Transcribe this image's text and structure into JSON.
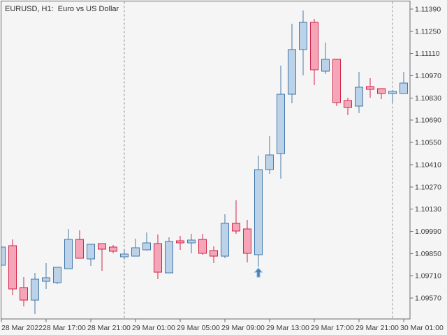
{
  "window": {
    "title": "EURUSD, H1:  Euro vs US Dollar"
  },
  "colors": {
    "background": "#f5f5f5",
    "frame": "#6b6b6b",
    "axis_text": "#3b3b3b",
    "separator": "#8f8f8f",
    "bull_fill": "#bcd2e8",
    "bull_border": "#4379a8",
    "bear_fill": "#f4a6b8",
    "bear_border": "#d42349",
    "marker_fill": "#4b80b4",
    "marker_outline": "#a9c9e6"
  },
  "chart_data": {
    "type": "candlestick",
    "symbol": "EURUSD",
    "timeframe": "H1",
    "description": "Euro vs US Dollar",
    "title": "EURUSD, H1:  Euro vs US Dollar",
    "grid": false,
    "y_axis": {
      "side": "right",
      "price_max": 1.1139,
      "price_min": 1.0957,
      "tick_step": 0.0014,
      "labels": [
        "1.11390",
        "1.11250",
        "1.11110",
        "1.10970",
        "1.10830",
        "1.10690",
        "1.10550",
        "1.10410",
        "1.10270",
        "1.10130",
        "1.09990",
        "1.09850",
        "1.09710",
        "1.09570"
      ]
    },
    "x_axis": {
      "side": "bottom",
      "tick_every_n_candles": 4,
      "labels": [
        "28 Mar 2022",
        "28 Mar 17:00",
        "28 Mar 21:00",
        "29 Mar 01:00",
        "29 Mar 05:00",
        "29 Mar 09:00",
        "29 Mar 13:00",
        "29 Mar 17:00",
        "29 Mar 21:00",
        "30 Mar 01:00"
      ]
    },
    "day_separators": [
      {
        "candle_index": 11,
        "time": "29 Mar 00:00"
      },
      {
        "candle_index": 35,
        "time": "30 Mar 00:00"
      }
    ],
    "marker": {
      "type": "arrow-up",
      "candle_index": 23,
      "time": "29 Mar 12:00",
      "price": 1.0976
    },
    "candles": [
      {
        "t": "28 Mar 13:00",
        "o": 1.09777,
        "h": 1.09891,
        "l": 1.09777,
        "c": 1.09891,
        "d": "up"
      },
      {
        "t": "28 Mar 14:00",
        "o": 1.099,
        "h": 1.09939,
        "l": 1.09588,
        "c": 1.09627,
        "d": "down"
      },
      {
        "t": "28 Mar 15:00",
        "o": 1.09636,
        "h": 1.09702,
        "l": 1.09517,
        "c": 1.09557,
        "d": "down"
      },
      {
        "t": "28 Mar 16:00",
        "o": 1.09557,
        "h": 1.09728,
        "l": 1.09469,
        "c": 1.09689,
        "d": "up"
      },
      {
        "t": "28 Mar 17:00",
        "o": 1.09675,
        "h": 1.0979,
        "l": 1.09627,
        "c": 1.09697,
        "d": "up"
      },
      {
        "t": "28 Mar 18:00",
        "o": 1.09667,
        "h": 1.09763,
        "l": 1.09658,
        "c": 1.09763,
        "d": "up"
      },
      {
        "t": "28 Mar 19:00",
        "o": 1.09755,
        "h": 1.10005,
        "l": 1.09755,
        "c": 1.09939,
        "d": "up"
      },
      {
        "t": "28 Mar 20:00",
        "o": 1.09939,
        "h": 1.09996,
        "l": 1.09821,
        "c": 1.09821,
        "d": "down"
      },
      {
        "t": "28 Mar 21:00",
        "o": 1.09816,
        "h": 1.09909,
        "l": 1.09772,
        "c": 1.09909,
        "d": "up"
      },
      {
        "t": "28 Mar 22:00",
        "o": 1.09913,
        "h": 1.09913,
        "l": 1.09742,
        "c": 1.09878,
        "d": "down"
      },
      {
        "t": "28 Mar 23:00",
        "o": 1.09891,
        "h": 1.09904,
        "l": 1.09851,
        "c": 1.09865,
        "d": "down"
      },
      {
        "t": "29 Mar 00:00",
        "o": 1.09829,
        "h": 1.09878,
        "l": 1.09812,
        "c": 1.09847,
        "d": "up"
      },
      {
        "t": "29 Mar 01:00",
        "o": 1.09834,
        "h": 1.09944,
        "l": 1.09834,
        "c": 1.09887,
        "d": "up"
      },
      {
        "t": "29 Mar 02:00",
        "o": 1.09873,
        "h": 1.09983,
        "l": 1.09869,
        "c": 1.09917,
        "d": "up"
      },
      {
        "t": "29 Mar 03:00",
        "o": 1.09913,
        "h": 1.0997,
        "l": 1.09689,
        "c": 1.09733,
        "d": "down"
      },
      {
        "t": "29 Mar 04:00",
        "o": 1.09728,
        "h": 1.09952,
        "l": 1.09728,
        "c": 1.09926,
        "d": "up"
      },
      {
        "t": "29 Mar 05:00",
        "o": 1.0993,
        "h": 1.09961,
        "l": 1.09873,
        "c": 1.09917,
        "d": "down"
      },
      {
        "t": "29 Mar 06:00",
        "o": 1.09917,
        "h": 1.09974,
        "l": 1.09851,
        "c": 1.09935,
        "d": "up"
      },
      {
        "t": "29 Mar 07:00",
        "o": 1.09939,
        "h": 1.09974,
        "l": 1.09843,
        "c": 1.09851,
        "d": "down"
      },
      {
        "t": "29 Mar 08:00",
        "o": 1.09869,
        "h": 1.09895,
        "l": 1.0979,
        "c": 1.09834,
        "d": "down"
      },
      {
        "t": "29 Mar 09:00",
        "o": 1.09834,
        "h": 1.10097,
        "l": 1.09821,
        "c": 1.1004,
        "d": "up"
      },
      {
        "t": "29 Mar 10:00",
        "o": 1.1004,
        "h": 1.10185,
        "l": 1.09974,
        "c": 1.09992,
        "d": "down"
      },
      {
        "t": "29 Mar 11:00",
        "o": 1.10005,
        "h": 1.10062,
        "l": 1.09794,
        "c": 1.09851,
        "d": "down"
      },
      {
        "t": "29 Mar 12:00",
        "o": 1.09843,
        "h": 1.10467,
        "l": 1.09768,
        "c": 1.10379,
        "d": "up"
      },
      {
        "t": "29 Mar 13:00",
        "o": 1.10379,
        "h": 1.1059,
        "l": 1.10352,
        "c": 1.10471,
        "d": "up"
      },
      {
        "t": "29 Mar 14:00",
        "o": 1.1048,
        "h": 1.11034,
        "l": 1.10322,
        "c": 1.10854,
        "d": "up"
      },
      {
        "t": "29 Mar 15:00",
        "o": 1.10854,
        "h": 1.11298,
        "l": 1.10796,
        "c": 1.11135,
        "d": "up"
      },
      {
        "t": "29 Mar 16:00",
        "o": 1.11135,
        "h": 1.11381,
        "l": 1.10972,
        "c": 1.11306,
        "d": "up"
      },
      {
        "t": "29 Mar 17:00",
        "o": 1.11306,
        "h": 1.11328,
        "l": 1.10911,
        "c": 1.11008,
        "d": "down"
      },
      {
        "t": "29 Mar 18:00",
        "o": 1.10999,
        "h": 1.11179,
        "l": 1.10981,
        "c": 1.11073,
        "d": "up"
      },
      {
        "t": "29 Mar 19:00",
        "o": 1.11073,
        "h": 1.11073,
        "l": 1.10779,
        "c": 1.10801,
        "d": "down"
      },
      {
        "t": "29 Mar 20:00",
        "o": 1.10814,
        "h": 1.10832,
        "l": 1.10722,
        "c": 1.1077,
        "d": "down"
      },
      {
        "t": "29 Mar 21:00",
        "o": 1.10779,
        "h": 1.10994,
        "l": 1.10735,
        "c": 1.10898,
        "d": "up"
      },
      {
        "t": "29 Mar 22:00",
        "o": 1.10902,
        "h": 1.10955,
        "l": 1.10832,
        "c": 1.10884,
        "d": "down"
      },
      {
        "t": "29 Mar 23:00",
        "o": 1.10889,
        "h": 1.10889,
        "l": 1.10823,
        "c": 1.10858,
        "d": "down"
      },
      {
        "t": "30 Mar 00:00",
        "o": 1.10858,
        "h": 1.1088,
        "l": 1.10796,
        "c": 1.10871,
        "d": "up"
      },
      {
        "t": "30 Mar 01:00",
        "o": 1.10858,
        "h": 1.10994,
        "l": 1.10858,
        "c": 1.10924,
        "d": "up"
      }
    ]
  }
}
